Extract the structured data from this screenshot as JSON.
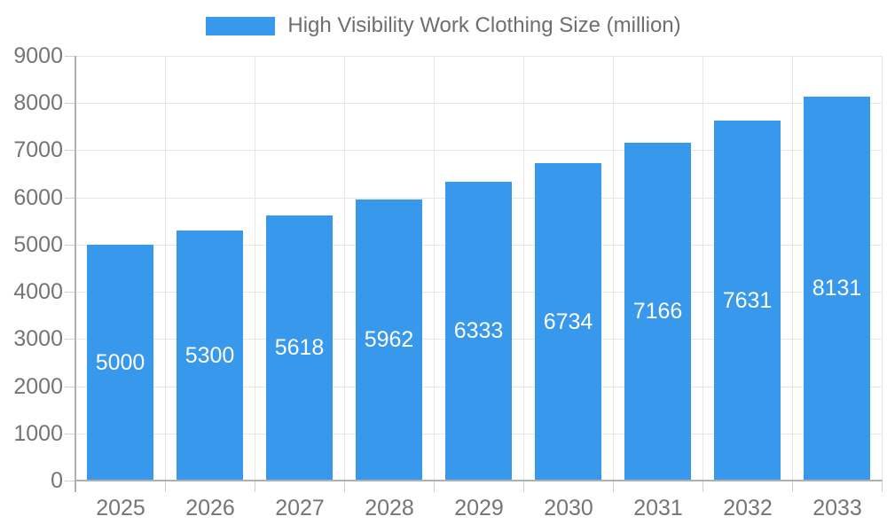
{
  "legend": {
    "label": "High Visibility Work Clothing Size (million)"
  },
  "chart_data": {
    "type": "bar",
    "title": "High Visibility Work Clothing Size (million)",
    "series_name": "High Visibility Work Clothing Size (million)",
    "categories": [
      "2025",
      "2026",
      "2027",
      "2028",
      "2029",
      "2030",
      "2031",
      "2032",
      "2033"
    ],
    "values": [
      5000,
      5300,
      5618,
      5962,
      6333,
      6734,
      7166,
      7631,
      8131
    ],
    "xlabel": "",
    "ylabel": "",
    "ylim": [
      0,
      9000
    ],
    "yticks": [
      0,
      1000,
      2000,
      3000,
      4000,
      5000,
      6000,
      7000,
      8000,
      9000
    ],
    "grid": true,
    "legend_position": "top",
    "value_label_position": "inside-center",
    "colors": {
      "bar": "#3898EC",
      "value_label": "#ffffff",
      "axis_text": "#757575",
      "legend_text": "#6e6e6e",
      "gridline": "#e6e6e6",
      "axis_line": "#b0b0b0",
      "tick": "#cfcfcf",
      "background": "#ffffff"
    }
  }
}
